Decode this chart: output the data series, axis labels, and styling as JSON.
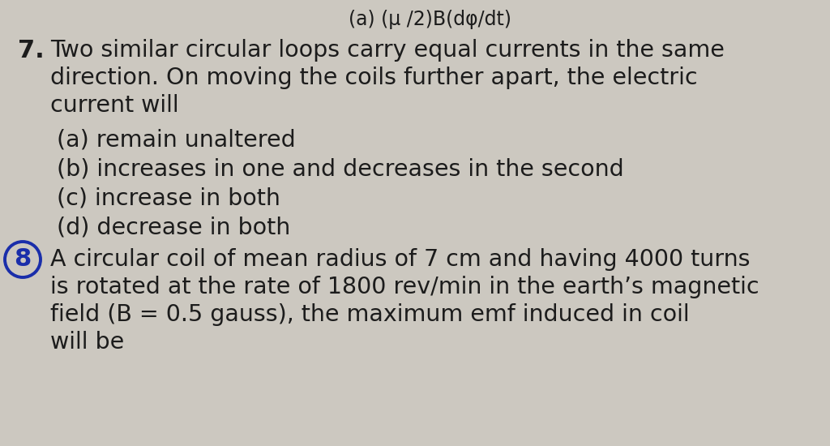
{
  "background_color": "#ccc8c0",
  "top_text": "(a) (μ /2)B(dφ/dt)",
  "question7_number": "7.",
  "question7_line1": "Two similar circular loops carry equal currents in the same",
  "question7_line2": "direction. On moving the coils further apart, the electric",
  "question7_line3": "current will",
  "option_a": "(a) remain unaltered",
  "option_b": "(b) increases in one and decreases in the second",
  "option_c": "(c) increase in both",
  "option_d": "(d) decrease in both",
  "question8_line1": "A circular coil of mean radius of 7 cm and having 4000 turns",
  "question8_line2": "is rotated at the rate of 1800 rev/min in the earth’s magnetic",
  "question8_line3": "field (B = 0.5 gauss), the maximum emf induced in coil",
  "question8_line4": "will be",
  "text_color": "#1c1c1c",
  "circle8_color": "#1a2eaa",
  "font_size_main": 20.5,
  "font_size_number": 22,
  "font_size_top": 17
}
